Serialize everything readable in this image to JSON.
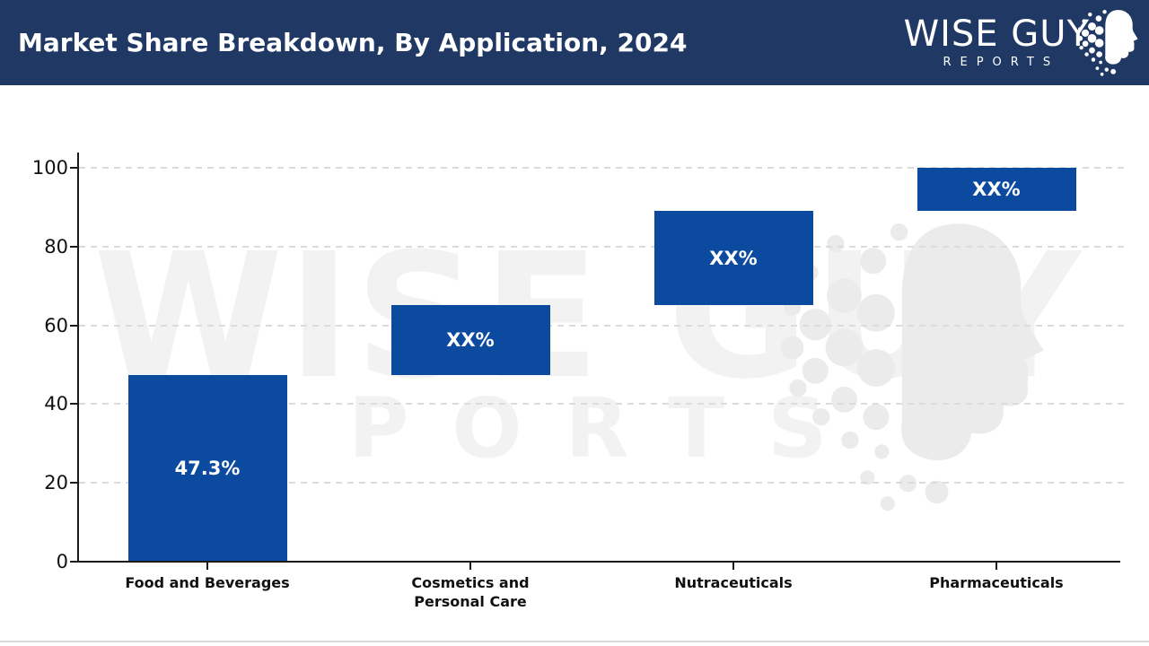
{
  "header": {
    "title": "Market Share Breakdown, By Application, 2024",
    "bg_color": "#1f3864",
    "logo": {
      "line1": "WISE GUY",
      "line2": "REPORTS"
    }
  },
  "watermark": {
    "line1": "WISE GUY",
    "line2": "PORTS"
  },
  "chart_data": {
    "type": "bar",
    "subtype": "waterfall",
    "title": "Market Share Breakdown, By Application, 2024",
    "xlabel": "",
    "ylabel": "",
    "ylim": [
      0,
      100
    ],
    "yticks": [
      0,
      20,
      40,
      60,
      80,
      100
    ],
    "grid": "horizontal-dashed",
    "legend": "none",
    "bar_color": "#0b4a9e",
    "label_color": "#ffffff",
    "categories": [
      "Food and Beverages",
      "Cosmetics and Personal Care",
      "Nutraceuticals",
      "Pharmaceuticals"
    ],
    "category_lines": [
      [
        "Food and Beverages"
      ],
      [
        "Cosmetics and",
        "Personal Care"
      ],
      [
        "Nutraceuticals"
      ],
      [
        "Pharmaceuticals"
      ]
    ],
    "segments": [
      {
        "category": "Food and Beverages",
        "start": 0,
        "end": 47.3,
        "value": 47.3,
        "label": "47.3%"
      },
      {
        "category": "Cosmetics and Personal Care",
        "start": 47.3,
        "end": 65.1,
        "value": 17.8,
        "label": "XX%"
      },
      {
        "category": "Nutraceuticals",
        "start": 65.1,
        "end": 89.0,
        "value": 23.9,
        "label": "XX%"
      },
      {
        "category": "Pharmaceuticals",
        "start": 89.0,
        "end": 100.0,
        "value": 11.0,
        "label": "XX%"
      }
    ]
  }
}
